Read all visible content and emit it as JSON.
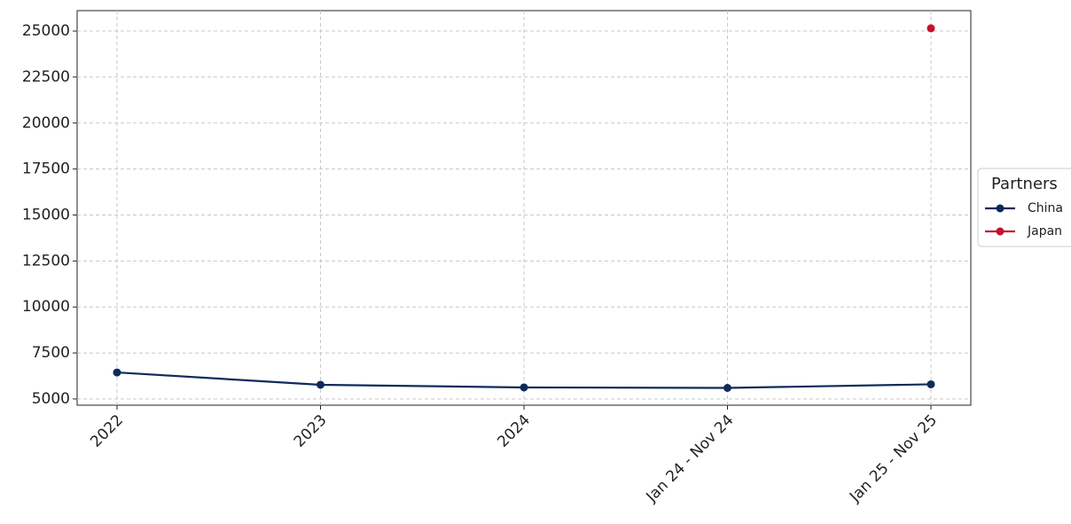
{
  "chart_data": {
    "type": "line",
    "categories": [
      "2022",
      "2023",
      "2024",
      "Jan 24 - Nov 24",
      "Jan 25 - Nov 25"
    ],
    "series": [
      {
        "name": "China",
        "color": "#0f2b5b",
        "values": [
          6440,
          5770,
          5625,
          5600,
          5795
        ]
      },
      {
        "name": "Japan",
        "color": "#c8102e",
        "values": [
          null,
          null,
          null,
          null,
          25150
        ]
      }
    ],
    "ylim": [
      4660,
      26110
    ],
    "yticks": [
      5000,
      7500,
      10000,
      12500,
      15000,
      17500,
      20000,
      22500,
      25000
    ],
    "grid": true,
    "legend_title": "Partners",
    "legend": "outside right"
  }
}
